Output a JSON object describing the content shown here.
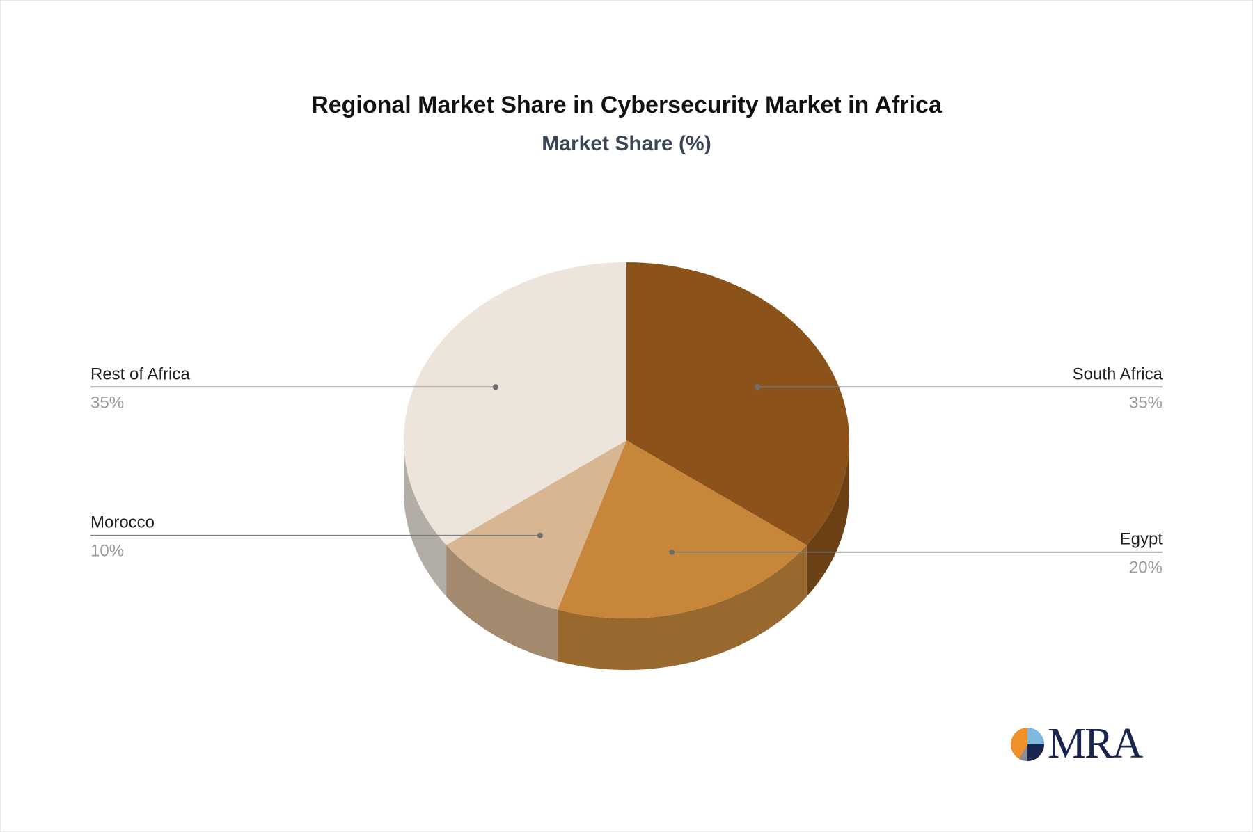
{
  "chart_data": {
    "type": "pie",
    "title": "Regional Market Share in Cybersecurity Market in Africa",
    "subtitle": "Market Share (%)",
    "slices": [
      {
        "label": "South Africa",
        "value": 35,
        "display": "35%",
        "color": "#8b5319",
        "side_color": "#6b4014"
      },
      {
        "label": "Egypt",
        "value": 20,
        "display": "20%",
        "color": "#c8863b",
        "side_color": "#98692f"
      },
      {
        "label": "Morocco",
        "value": 10,
        "display": "10%",
        "color": "#d7b691",
        "side_color": "#a38a6e"
      },
      {
        "label": "Rest of Africa",
        "value": 35,
        "display": "35%",
        "color": "#ede4db",
        "side_color": "#b3ada7"
      }
    ]
  },
  "logo": {
    "text": "MRA"
  }
}
